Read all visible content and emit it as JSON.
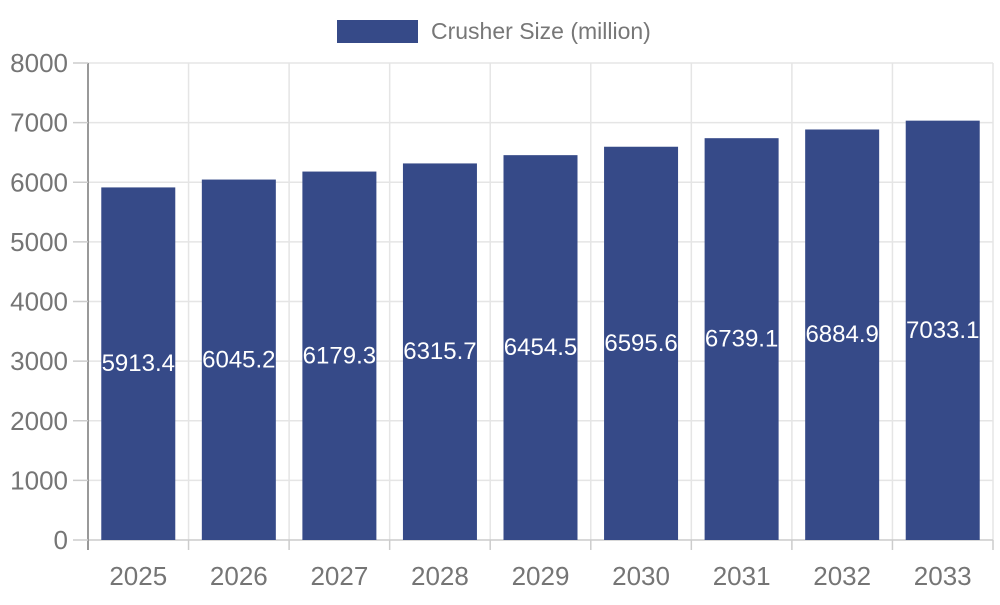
{
  "chart_data": {
    "type": "bar",
    "legend": "Crusher Size (million)",
    "legend_position": "top",
    "categories": [
      "2025",
      "2026",
      "2027",
      "2028",
      "2029",
      "2030",
      "2031",
      "2032",
      "2033"
    ],
    "values": [
      5913.4,
      6045.2,
      6179.3,
      6315.7,
      6454.5,
      6595.6,
      6739.1,
      6884.9,
      7033.1
    ],
    "value_labels": [
      "5913.4",
      "6045.2",
      "6179.3",
      "6315.7",
      "6454.5",
      "6595.6",
      "6739.1",
      "6884.9",
      "7033.1"
    ],
    "ylim": [
      0,
      8000
    ],
    "yticks": [
      0,
      1000,
      2000,
      3000,
      4000,
      5000,
      6000,
      7000,
      8000
    ],
    "grid": true,
    "colors": {
      "bar": "#364a88",
      "axis_text": "#757575",
      "value_text": "#ffffff",
      "grid_line": "#e5e5e5",
      "axis_line": "#999999",
      "tick_line": "#cccccc",
      "background": "#ffffff"
    }
  }
}
